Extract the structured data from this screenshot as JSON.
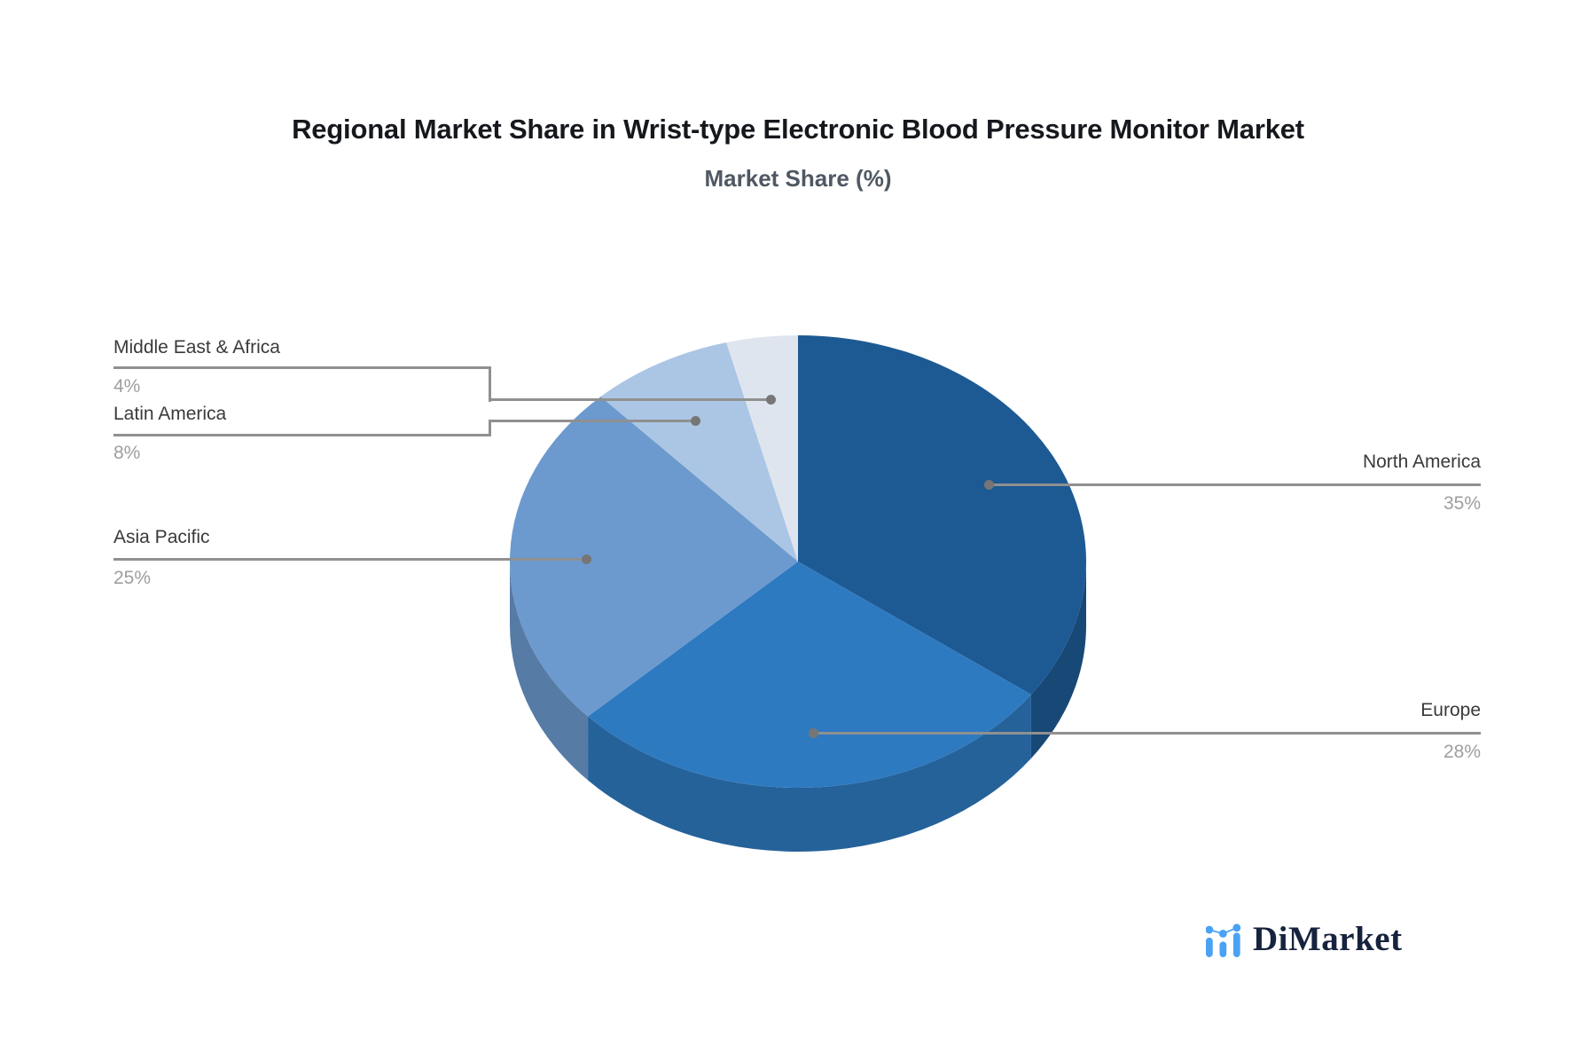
{
  "header": {
    "title": "Regional Market Share in Wrist-type Electronic Blood Pressure Monitor Market",
    "subtitle": "Market Share (%)"
  },
  "chart_data": {
    "type": "pie",
    "title": "Regional Market Share in Wrist-type Electronic Blood Pressure Monitor Market",
    "subtitle": "Market Share (%)",
    "unit": "%",
    "effect": "3d",
    "start_angle_deg": 0,
    "direction": "clockwise",
    "legend": "none (leader-line labels)",
    "slices": [
      {
        "label": "North America",
        "value": 35,
        "value_text": "35%",
        "color": "#1d5a93"
      },
      {
        "label": "Europe",
        "value": 28,
        "value_text": "28%",
        "color": "#2e7ac1"
      },
      {
        "label": "Asia Pacific",
        "value": 25,
        "value_text": "25%",
        "color": "#6c9ace"
      },
      {
        "label": "Latin America",
        "value": 8,
        "value_text": "8%",
        "color": "#abc6e4"
      },
      {
        "label": "Middle East & Africa",
        "value": 4,
        "value_text": "4%",
        "color": "#dfe5ef"
      }
    ]
  },
  "style": {
    "leader_line_color": "#909090",
    "leader_dot_color": "#767676",
    "label_color": "#3a3a3a",
    "value_color": "#9e9e9e"
  },
  "logo": {
    "name": "DiMarket",
    "icon": "bar-chart-logo-icon",
    "icon_color": "#4aa2f4",
    "text_color": "#17233e"
  }
}
